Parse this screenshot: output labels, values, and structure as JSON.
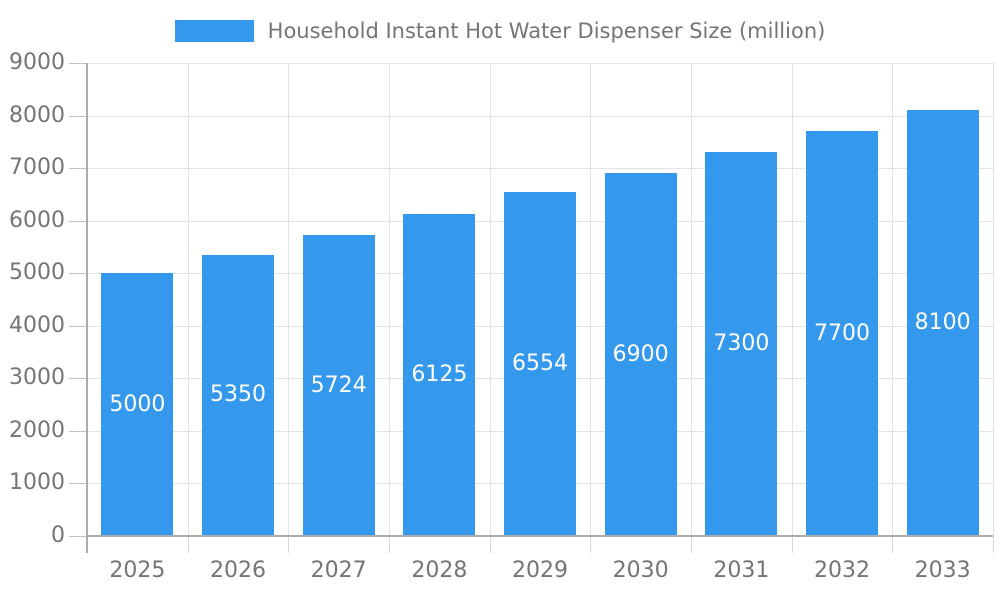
{
  "chart_data": {
    "type": "bar",
    "title": "Household Instant Hot Water Dispenser Size (million)",
    "series_name": "Household Instant Hot Water Dispenser Size (million)",
    "categories": [
      "2025",
      "2026",
      "2027",
      "2028",
      "2029",
      "2030",
      "2031",
      "2032",
      "2033"
    ],
    "values": [
      5000,
      5350,
      5724,
      6125,
      6554,
      6900,
      7300,
      7700,
      8100
    ],
    "value_labels": [
      "5000",
      "5350",
      "5724",
      "6125",
      "6554",
      "6900",
      "7300",
      "7700",
      "8100"
    ],
    "xlabel": "",
    "ylabel": "",
    "ylim": [
      0,
      9000
    ],
    "ytick_interval": 1000,
    "ytick_labels": [
      "0",
      "1000",
      "2000",
      "3000",
      "4000",
      "5000",
      "6000",
      "7000",
      "8000",
      "9000"
    ],
    "grid": true,
    "legend_position": "top",
    "colors": {
      "bar": "#3498ec",
      "value_label": "#ffffff",
      "axis_text": "#757575",
      "gridline": "#e3e3e3",
      "axis_line": "#ababab"
    }
  }
}
